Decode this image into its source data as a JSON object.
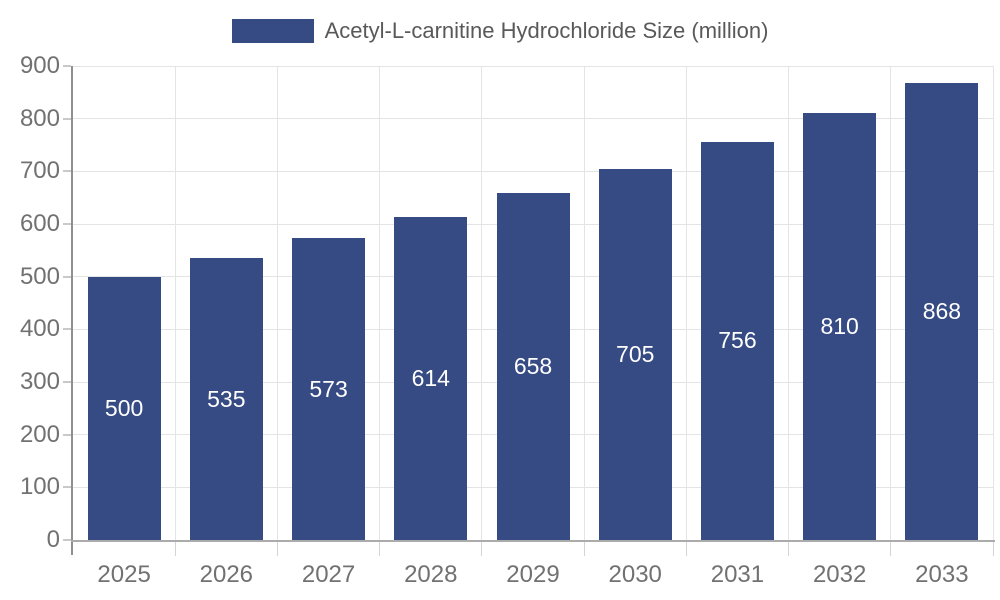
{
  "legend": {
    "label": "Acetyl-L-carnitine Hydrochloride Size (million)"
  },
  "colors": {
    "bar": "#364A84",
    "value_label": "#ffffff",
    "axis_text": "#717171",
    "legend_text": "#595959",
    "gridline": "#e4e4e4",
    "y_axis_line": "#8f8f8f",
    "x_axis_line": "#ababab",
    "tick_y": "#c9c9c9",
    "tick_x": "#d4d4d4"
  },
  "chart_data": {
    "type": "bar",
    "title": "",
    "xlabel": "",
    "ylabel": "",
    "legend_position": "top-center",
    "legend_entries": [
      "Acetyl-L-carnitine Hydrochloride Size (million)"
    ],
    "categories": [
      "2025",
      "2026",
      "2027",
      "2028",
      "2029",
      "2030",
      "2031",
      "2032",
      "2033"
    ],
    "series": [
      {
        "name": "Acetyl-L-carnitine Hydrochloride Size (million)",
        "values": [
          500,
          535,
          573,
          614,
          658,
          705,
          756,
          810,
          868
        ]
      }
    ],
    "bar_value_labels_visible": true,
    "ylim": [
      0,
      900
    ],
    "ytick_step": 100,
    "yticks": [
      0,
      100,
      200,
      300,
      400,
      500,
      600,
      700,
      800,
      900
    ],
    "grid": true
  }
}
